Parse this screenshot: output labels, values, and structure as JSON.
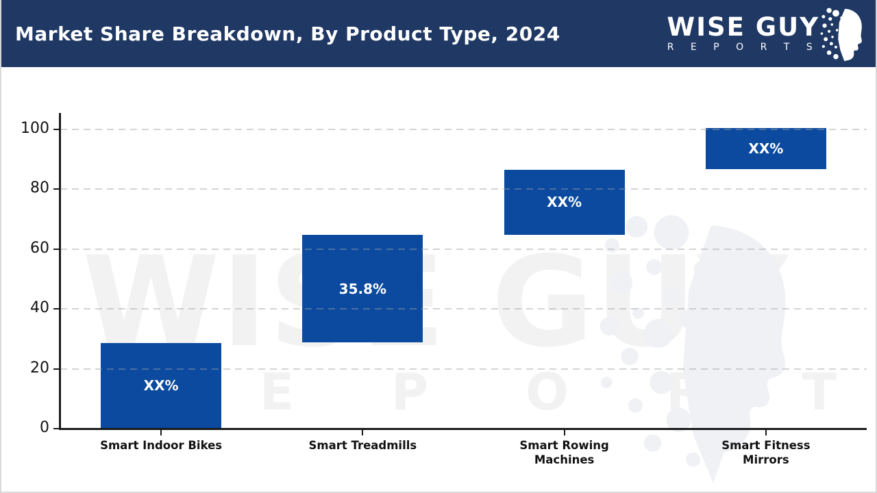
{
  "header": {
    "title": "Market Share Breakdown, By Product Type, 2024",
    "logo": {
      "line1": "WISE GUY",
      "line2": "R E P O R T S"
    }
  },
  "watermark": {
    "line1": "WISE GUY",
    "line2": "R E P O R T S"
  },
  "colors": {
    "header_bg": "#1f3864",
    "bar": "#0b4a9e",
    "axis": "#1a1a1a",
    "tick_text": "#111111",
    "bar_label_text": "#ffffff",
    "watermark": "#f2f2f3"
  },
  "chart_data": {
    "type": "bar",
    "subtype": "floating-waterfall-stacked",
    "title": "Market Share Breakdown, By Product Type, 2024",
    "xlabel": "",
    "ylabel": "",
    "ylim": [
      0,
      105
    ],
    "yticks": [
      0,
      20,
      40,
      60,
      80,
      100
    ],
    "grid": "dashed-horizontal-above-bars",
    "legend": "none",
    "categories": [
      "Smart Indoor Bikes",
      "Smart Treadmills",
      "Smart Rowing Machines",
      "Smart Fitness Mirrors"
    ],
    "bars": [
      {
        "category": "Smart Indoor Bikes",
        "category_lines": [
          "Smart Indoor Bikes"
        ],
        "start": 0,
        "end": 28.6,
        "label": "XX%"
      },
      {
        "category": "Smart Treadmills",
        "category_lines": [
          "Smart Treadmills"
        ],
        "start": 28.8,
        "end": 64.6,
        "label": "35.8%"
      },
      {
        "category": "Smart Rowing Machines",
        "category_lines": [
          "Smart Rowing",
          "Machines"
        ],
        "start": 64.8,
        "end": 86.4,
        "label": "XX%"
      },
      {
        "category": "Smart Fitness Mirrors",
        "category_lines": [
          "Smart Fitness",
          "Mirrors"
        ],
        "start": 86.6,
        "end": 100.3,
        "label": "XX%"
      }
    ]
  }
}
